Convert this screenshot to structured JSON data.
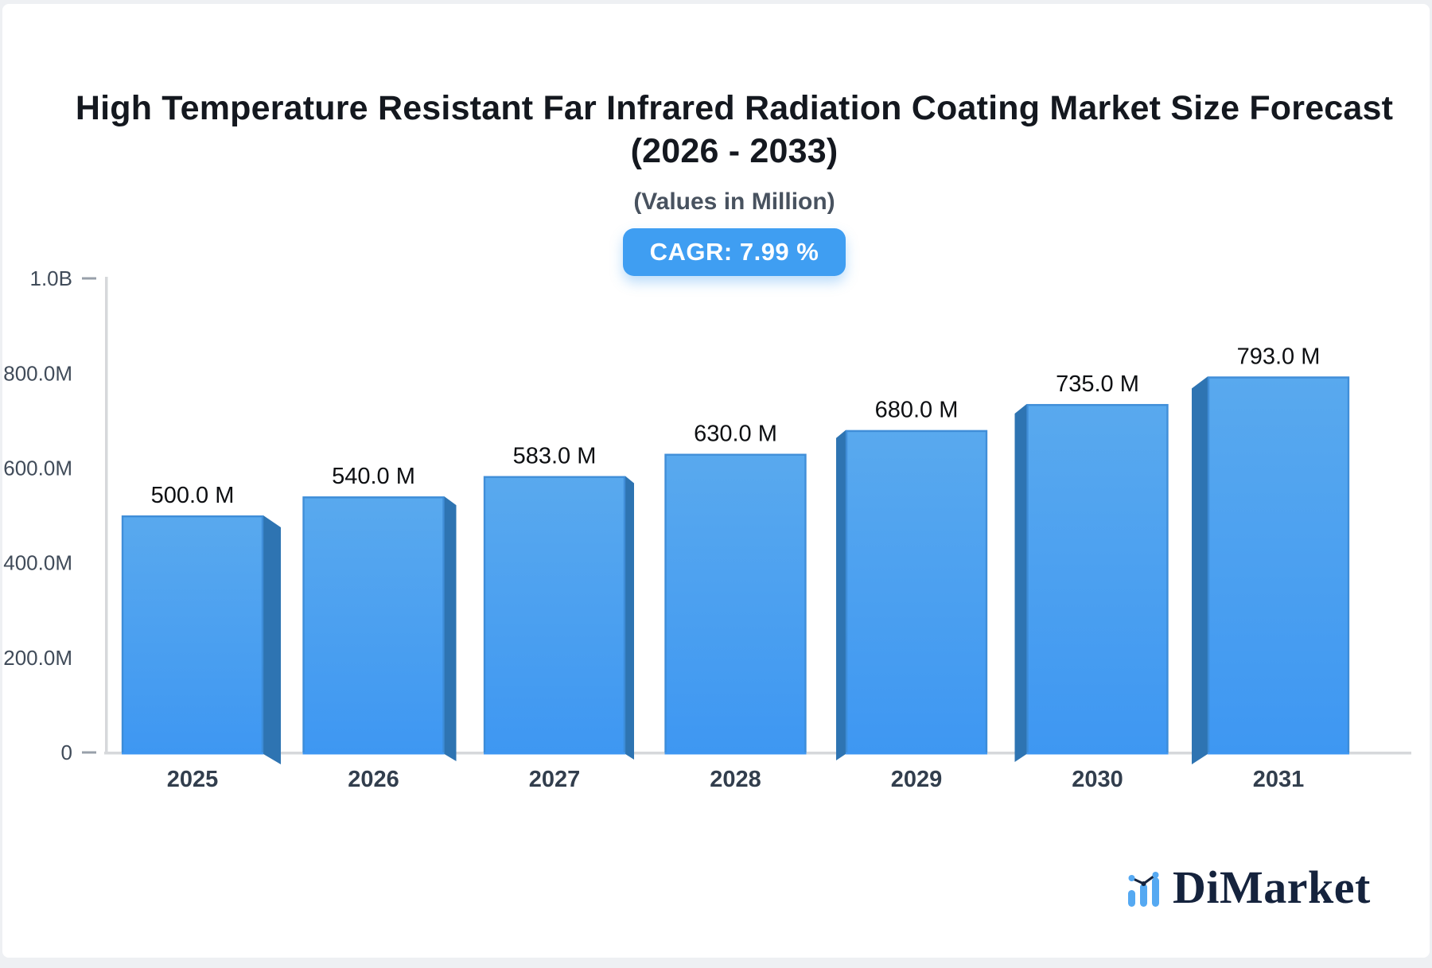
{
  "page": {
    "background": "#eef0f3",
    "card_background": "#ffffff"
  },
  "header": {
    "title_line1": "High Temperature Resistant Far Infrared Radiation Coating Market Size Forecast",
    "title_line2": "(2026 - 2033)",
    "subtitle": "(Values in Million)",
    "cagr_badge": "CAGR: 7.99 %"
  },
  "chart_data": {
    "type": "bar",
    "title": "High Temperature Resistant Far Infrared Radiation Coating Market Size Forecast (2026 - 2033)",
    "subtitle": "Values in Million",
    "categories": [
      "2025",
      "2026",
      "2027",
      "2028",
      "2029",
      "2030",
      "2031"
    ],
    "values": [
      500,
      540,
      583,
      630,
      680,
      735,
      793
    ],
    "value_labels": [
      "500.0 M",
      "540.0 M",
      "583.0 M",
      "630.0 M",
      "680.0 M",
      "735.0 M",
      "793.0 M"
    ],
    "unit": "Million",
    "xlabel": "",
    "ylabel": "",
    "ylim": [
      0,
      1000
    ],
    "y_tick_labels": [
      "1.0B",
      "800.0M",
      "600.0M",
      "400.0M",
      "200.0M",
      "0"
    ],
    "y_tick_values": [
      1000,
      800,
      600,
      400,
      200,
      0
    ],
    "grid": false,
    "legend": "none",
    "bar_style": "3d-perspective-toward-center",
    "cagr_percent": 7.99,
    "colors": {
      "bar_face_top": "#59a9ee",
      "bar_face_bottom": "#3e97f2",
      "bar_edge": "#3c8ad4",
      "bar_side": "#2e74b2",
      "axis_line": "#d6d8db",
      "tick": "#98a0aa",
      "y_label": "#404b59",
      "x_label": "#323e4d",
      "value_label": "#0d0f12",
      "badge_bg": "#3f9ef2",
      "badge_text": "#ffffff"
    }
  },
  "logo": {
    "text": "DiMarket",
    "navy": "#15233d",
    "blue": "#55a9f2"
  }
}
